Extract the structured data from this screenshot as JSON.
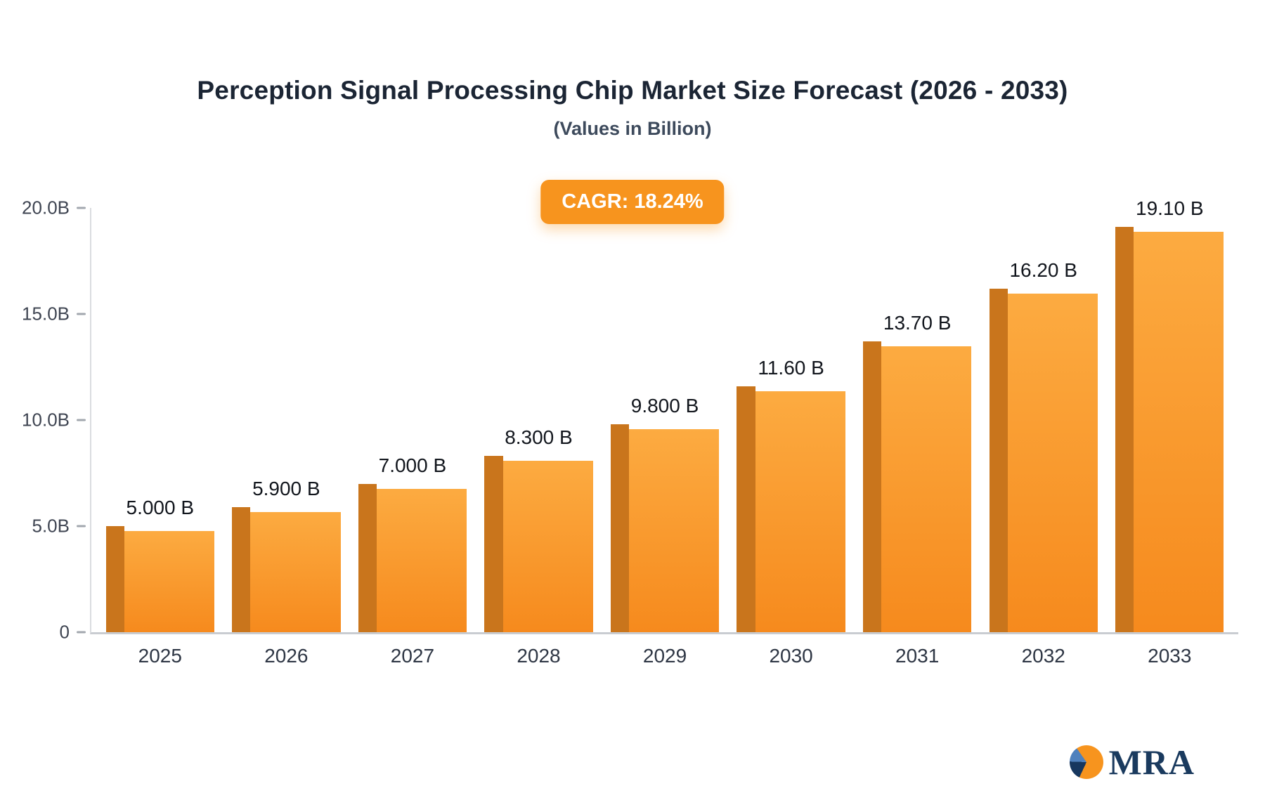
{
  "title": "Perception Signal Processing Chip Market Size Forecast (2026 - 2033)",
  "subtitle": "(Values in Billion)",
  "badge": {
    "label": "CAGR: 18.24%",
    "bg_color": "#f7941e",
    "text_color": "#ffffff"
  },
  "chart_data": {
    "type": "bar",
    "title": "Perception Signal Processing Chip Market Size Forecast (2026 - 2033)",
    "categories": [
      "2025",
      "2026",
      "2027",
      "2028",
      "2029",
      "2030",
      "2031",
      "2032",
      "2033"
    ],
    "values": [
      5.0,
      5.9,
      7.0,
      8.3,
      9.8,
      11.6,
      13.7,
      16.2,
      19.1
    ],
    "value_labels": [
      "5.000 B",
      "5.900 B",
      "7.000 B",
      "8.300 B",
      "9.800 B",
      "11.60 B",
      "13.70 B",
      "16.20 B",
      "19.10 B"
    ],
    "xlabel": "",
    "ylabel": "",
    "ylim": [
      0,
      20
    ],
    "grid": false,
    "legend": "none",
    "yticks": [
      {
        "value": 0,
        "label": "0"
      },
      {
        "value": 5,
        "label": "5.0B"
      },
      {
        "value": 10,
        "label": "10.0B"
      },
      {
        "value": 15,
        "label": "15.0B"
      },
      {
        "value": 20,
        "label": "20.0B"
      }
    ],
    "bar_color_top": "#fcab41",
    "bar_color_bottom": "#f68a1d",
    "bar_side_color": "#c9751c"
  },
  "logo": {
    "text": "MRA"
  }
}
